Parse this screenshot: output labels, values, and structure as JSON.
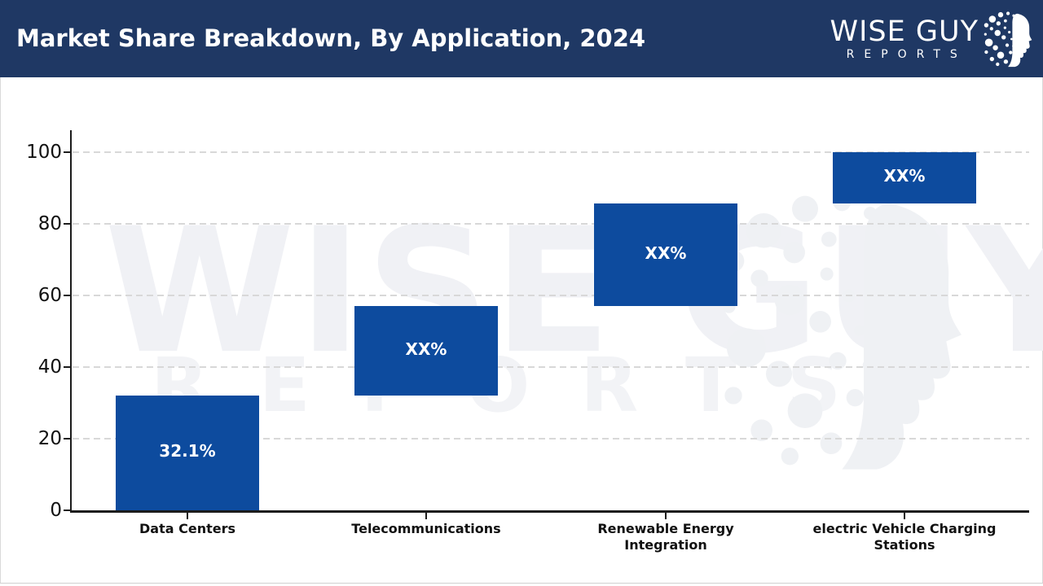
{
  "header": {
    "title": "Market Share Breakdown, By Application, 2024",
    "logo_primary": "WISE GUY",
    "logo_secondary": "REPORTS"
  },
  "watermark": {
    "primary": "WISE GUY",
    "secondary": "REPORTS"
  },
  "chart_data": {
    "type": "bar",
    "variant": "floating-waterfall",
    "title": "Market Share Breakdown, By Application, 2024",
    "categories": [
      "Data Centers",
      "Telecommunications",
      "Renewable Energy Integration",
      "electric Vehicle Charging Stations"
    ],
    "segments": [
      {
        "category": "Data Centers",
        "start": 0,
        "end": 32.1,
        "label": "32.1%"
      },
      {
        "category": "Telecommunications",
        "start": 32.1,
        "end": 57.1,
        "label": "XX%"
      },
      {
        "category": "Renewable Energy Integration",
        "start": 57.1,
        "end": 85.7,
        "label": "XX%"
      },
      {
        "category": "electric Vehicle Charging Stations",
        "start": 85.7,
        "end": 100,
        "label": "XX%"
      }
    ],
    "ylim": [
      0,
      100
    ],
    "yticks": [
      0,
      20,
      40,
      60,
      80,
      100
    ],
    "xlabel": "",
    "ylabel": "",
    "grid": "horizontal-dashed",
    "legend": "none",
    "bar_color": "#0d4b9e",
    "value_label_color": "#ffffff"
  },
  "colors": {
    "header_bg": "#1f3864",
    "bar": "#0d4b9e",
    "gridline": "#d8d8d8",
    "axis": "#1c1c1c",
    "watermark": "#f0f1f5",
    "page_bg": "#ffffff",
    "border": "#d9d9d9"
  }
}
